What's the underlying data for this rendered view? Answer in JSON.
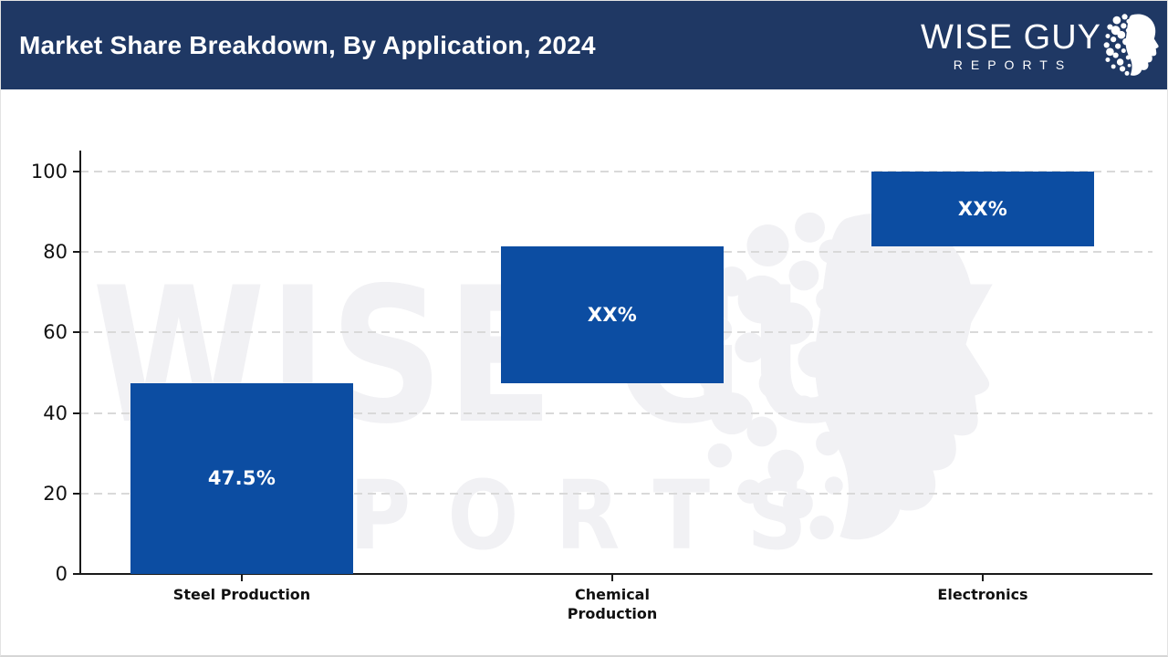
{
  "header": {
    "title": "Market Share Breakdown, By Application, 2024",
    "logo": {
      "line1": "WISE GUY",
      "line2": "REPORTS"
    }
  },
  "watermark": {
    "line1": "WISE GUY",
    "line2": "REPORTS"
  },
  "chart_data": {
    "type": "bar",
    "variant": "waterfall",
    "title": "Market Share Breakdown, By Application, 2024",
    "categories": [
      "Steel Production",
      "Chemical\nProduction",
      "Electronics"
    ],
    "series": [
      {
        "name": "Market Share (%)",
        "segments": [
          {
            "category": "Steel Production",
            "start": 0,
            "end": 47.5,
            "label": "47.5%"
          },
          {
            "category": "Chemical Production",
            "start": 47.5,
            "end": 81.5,
            "label": "XX%"
          },
          {
            "category": "Electronics",
            "start": 81.5,
            "end": 100,
            "label": "XX%"
          }
        ]
      }
    ],
    "xlabel": "",
    "ylabel": "",
    "ylim": [
      0,
      100
    ],
    "yticks": [
      0,
      20,
      40,
      60,
      80,
      100
    ],
    "grid": "horizontal-dashed",
    "legend": "none",
    "colors": {
      "bar": "#0c4da2",
      "bar_label": "#ffffff",
      "header_bg": "#1f3864",
      "grid": "#d9d9d9",
      "axis": "#1a1a1a",
      "tick_text": "#111111",
      "watermark": "#f1f1f4"
    }
  }
}
